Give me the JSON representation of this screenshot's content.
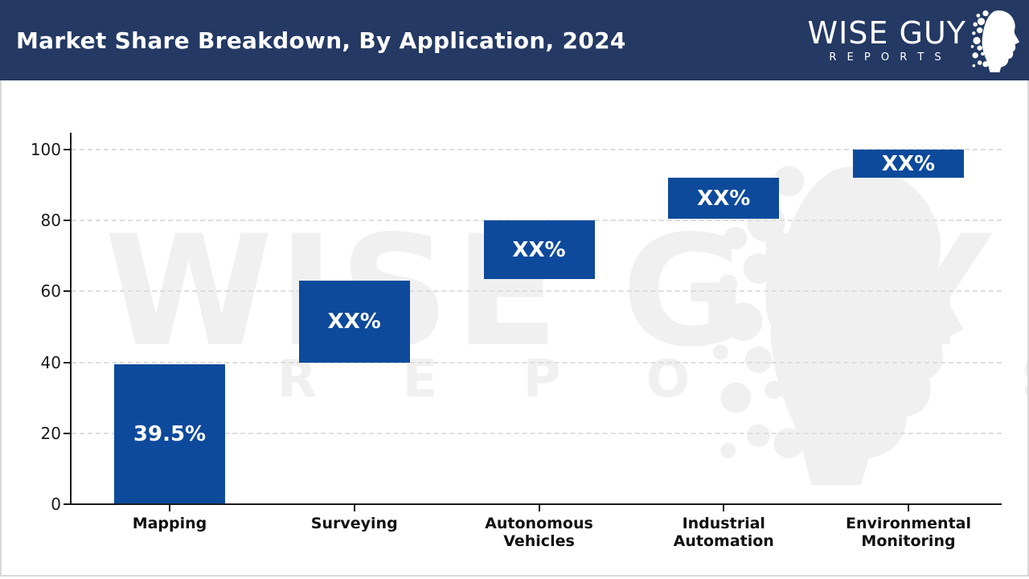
{
  "header": {
    "title": "Market Share Breakdown, By Application, 2024",
    "logo": {
      "name": "WISE GUY",
      "sub": "R E P O R T S"
    }
  },
  "watermark": {
    "name": "WISE GUY",
    "sub": "R E P O R T S"
  },
  "colors": {
    "header_bg": "#243963",
    "bar": "#0d4a9c",
    "bar_label": "#ffffff",
    "axis": "#1a1a1a",
    "grid": "#dddddd",
    "tick_label": "#1a1a1a",
    "category_label": "#111111",
    "watermark": "#f0f0f0",
    "frame_border": "#d8d8d8"
  },
  "chart_data": {
    "type": "bar",
    "subtype": "waterfall",
    "title": "Market Share Breakdown, By Application, 2024",
    "categories": [
      "Mapping",
      "Surveying",
      "Autonomous Vehicles",
      "Industrial Automation",
      "Environmental Monitoring"
    ],
    "category_lines": [
      [
        "Mapping"
      ],
      [
        "Surveying"
      ],
      [
        "Autonomous",
        "Vehicles"
      ],
      [
        "Industrial",
        "Automation"
      ],
      [
        "Environmental",
        "Monitoring"
      ]
    ],
    "segments": [
      {
        "category": "Mapping",
        "start": 0,
        "end": 39.5,
        "label": "39.5%"
      },
      {
        "category": "Surveying",
        "start": 40,
        "end": 63,
        "label": "XX%"
      },
      {
        "category": "Autonomous Vehicles",
        "start": 63.5,
        "end": 80,
        "label": "XX%"
      },
      {
        "category": "Industrial Automation",
        "start": 80.5,
        "end": 92,
        "label": "XX%"
      },
      {
        "category": "Environmental Monitoring",
        "start": 92,
        "end": 100,
        "label": "XX%"
      }
    ],
    "ylim": [
      0,
      100
    ],
    "yticks": [
      0,
      20,
      40,
      60,
      80,
      100
    ],
    "grid": "horizontal-dashed",
    "legend": false
  }
}
